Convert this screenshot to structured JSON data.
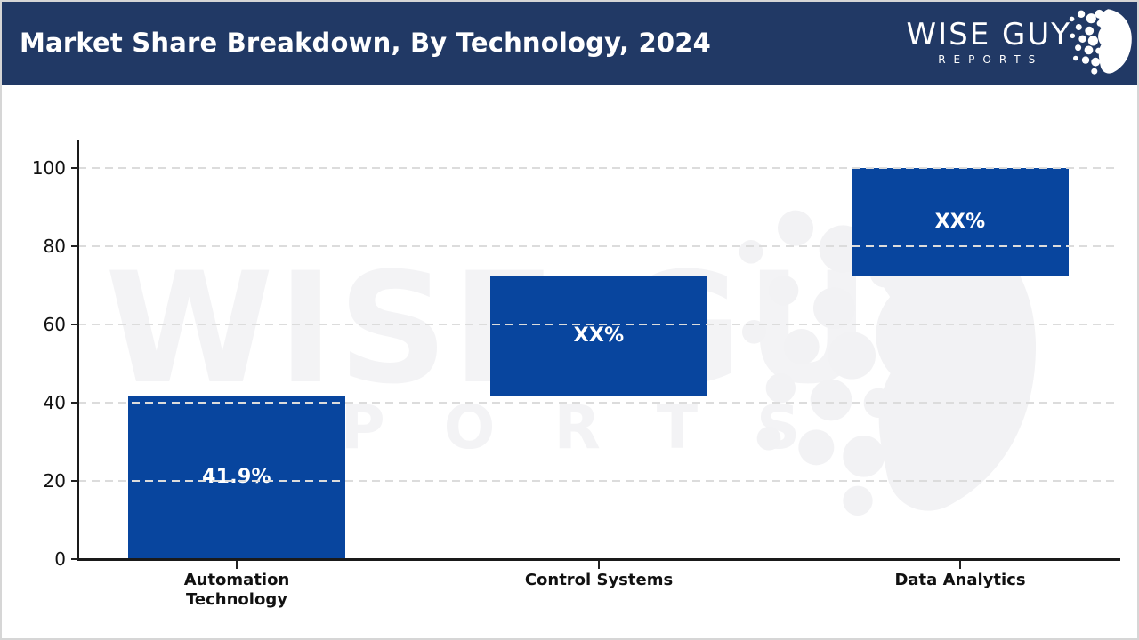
{
  "header": {
    "title": "Market Share Breakdown, By Technology, 2024",
    "logo": {
      "line1": "WISE GUY",
      "line2": "REPORTS"
    }
  },
  "watermark": {
    "line1": "WISE GUY",
    "line2": "REPORTS"
  },
  "colors": {
    "header_bg": "#213965",
    "bar": "#08459e",
    "grid": "#dcdcdc",
    "axis": "#1a1a1a",
    "bar_label": "#ffffff",
    "watermark": "#f3f3f5"
  },
  "chart_data": {
    "type": "bar",
    "subtype": "floating-stacked-breakdown",
    "title": "Market Share Breakdown, By Technology, 2024",
    "xlabel": "",
    "ylabel": "",
    "categories": [
      "Automation Technology",
      "Control Systems",
      "Data Analytics"
    ],
    "segments": [
      {
        "category": "Automation Technology",
        "from": 0,
        "to": 41.9,
        "value": 41.9,
        "label": "41.9%"
      },
      {
        "category": "Control Systems",
        "from": 41.9,
        "to": 72.4,
        "value": 30.5,
        "label": "XX%"
      },
      {
        "category": "Data Analytics",
        "from": 72.4,
        "to": 100,
        "value": 27.6,
        "label": "XX%"
      }
    ],
    "yticks": [
      0,
      20,
      40,
      60,
      80,
      100
    ],
    "ylim": [
      0,
      107
    ],
    "grid": "horizontal-dashed",
    "legend": "none"
  }
}
